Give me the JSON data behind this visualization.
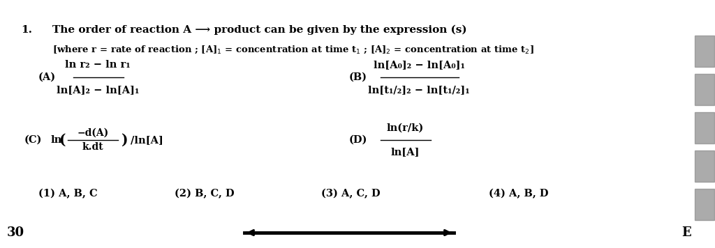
{
  "background_color": "#ffffff",
  "fig_width": 10.24,
  "fig_height": 3.56,
  "question_number": "1.",
  "question_text": "The order of reaction A ⟶ product can be given by the expression (s)",
  "bracket_text": "[where r = rate of reaction ; [A]",
  "bracket_sub1": "1",
  "bracket_mid": " = concentration at time t",
  "bracket_tsub1": "1",
  "bracket_sep": " ; [A]",
  "bracket_sub2": "2",
  "bracket_end": " = concentration at time t",
  "bracket_tsub2": "2",
  "bracket_close": "]",
  "optA_label": "(A)",
  "optA_num": "ln r₂ − ln r₁",
  "optA_den": "ln[A]₂ − ln[A]₁",
  "optB_label": "(B)",
  "optB_num": "ln[A₀]₂ − ln[A₀]₁",
  "optB_den": "ln[t₁/₂]₂ − ln[t₁/₂]₁",
  "optC_label": "(C)",
  "optC_text1": "ln",
  "optC_box_num": "−d(A)",
  "optC_box_den": "k.dt",
  "optC_text2": "/ln[A]",
  "optD_label": "(D)",
  "optD_num": "ln(r/k)",
  "optD_den": "ln[A]",
  "ans1": "(1) A, B, C",
  "ans2": "(2) B, C, D",
  "ans3": "(3) A, C, D",
  "ans4": "(4) A, B, D",
  "page_num": "30",
  "page_letter": "E",
  "font_size_question": 11,
  "font_size_option": 10.5,
  "font_size_answer": 10.5,
  "font_size_page": 13
}
